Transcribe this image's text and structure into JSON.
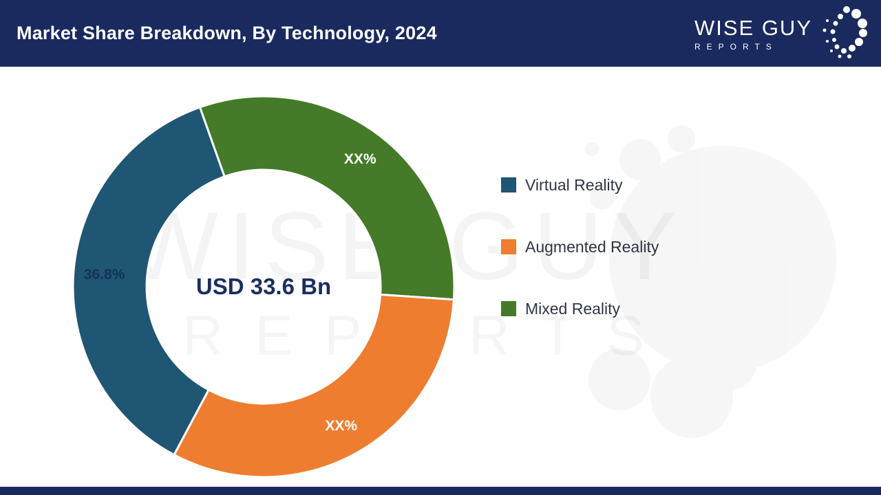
{
  "header": {
    "title": "Market Share Breakdown, By Technology, 2024",
    "bg_color": "#1a2a5e",
    "logo": {
      "line1": "WISE GUY",
      "line2": "REPORTS"
    }
  },
  "watermark": {
    "line1": "WISE GUY",
    "line2": "REPORTS"
  },
  "chart_data": {
    "type": "pie",
    "subtype": "donut",
    "title": "Market Share Breakdown, By Technology, 2024",
    "center_label": "USD 33.6 Bn",
    "legend_position": "right",
    "rotation_deg": 208,
    "draw_order": [
      0,
      2,
      1
    ],
    "segments": [
      {
        "name": "Virtual Reality",
        "label": "36.8%",
        "value": 36.8,
        "color": "#1f5673",
        "label_color": "#13325b"
      },
      {
        "name": "Augmented Reality",
        "label": "XX%",
        "value": 31.7,
        "color": "#ee7d30",
        "label_color": "#ffffff"
      },
      {
        "name": "Mixed Reality",
        "label": "XX%",
        "value": 31.5,
        "color": "#447a28",
        "label_color": "#ffffff"
      }
    ]
  }
}
